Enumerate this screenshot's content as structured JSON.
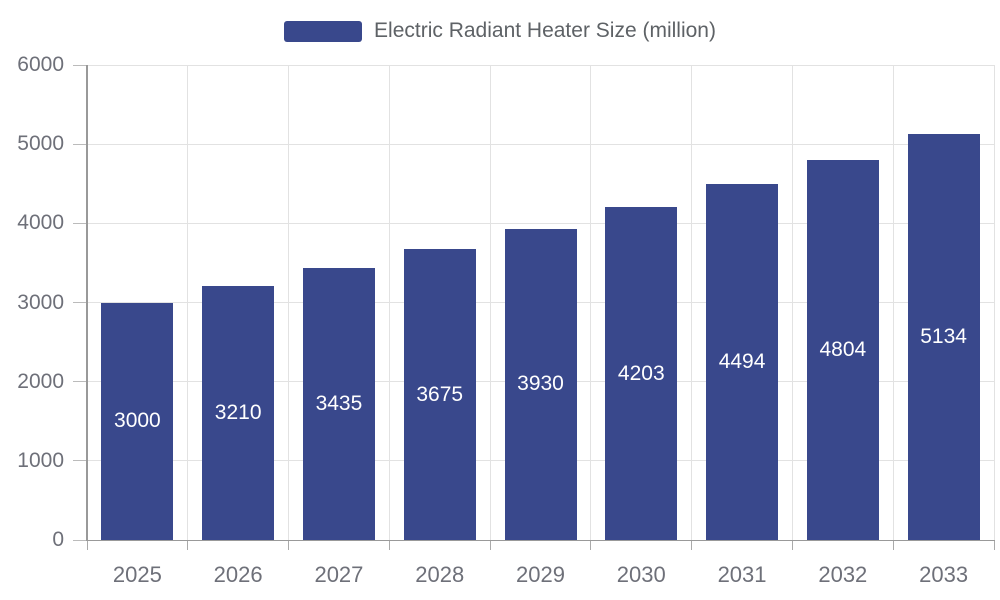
{
  "legend": {
    "label": "Electric Radiant Heater Size (million)"
  },
  "chart_data": {
    "type": "bar",
    "title": "",
    "categories": [
      "2025",
      "2026",
      "2027",
      "2028",
      "2029",
      "2030",
      "2031",
      "2032",
      "2033"
    ],
    "series": [
      {
        "name": "Electric Radiant Heater Size (million)",
        "values": [
          3000,
          3210,
          3435,
          3675,
          3930,
          4203,
          4494,
          4804,
          5134
        ]
      }
    ],
    "xlabel": "",
    "ylabel": "",
    "ylim": [
      0,
      6000
    ],
    "yticks": [
      0,
      1000,
      2000,
      3000,
      4000,
      5000,
      6000
    ],
    "grid": true,
    "legend_position": "top",
    "bar_label_position": "inside-middle"
  },
  "colors": {
    "bar": "#39488C",
    "bar_label": "#FFFFFF",
    "axis_label": "#6E7079",
    "legend_text": "#5E6266",
    "gridline": "#E2E2E2",
    "axis_line": "#999999",
    "y_tick": "#BBBBBB",
    "x_tick": "#AAAAAA",
    "background": "#FFFFFF"
  }
}
